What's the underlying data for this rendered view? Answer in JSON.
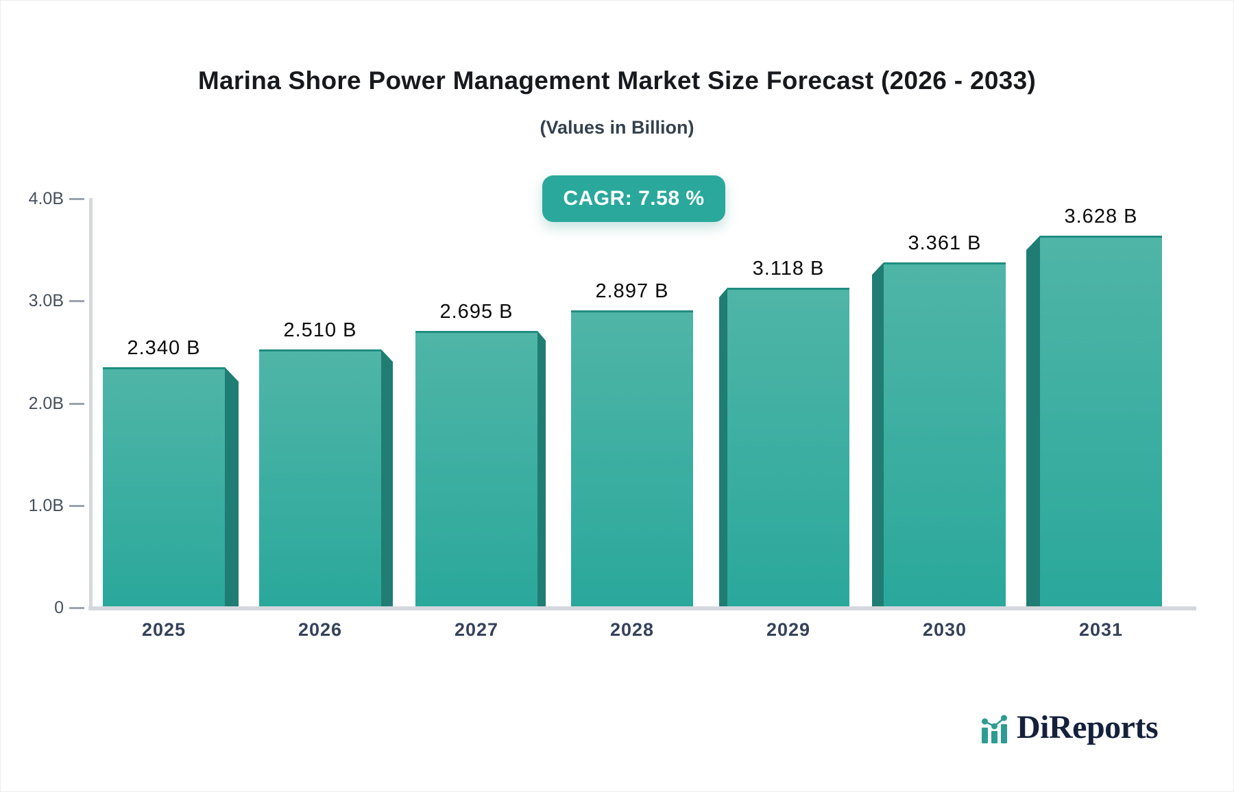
{
  "chart_data": {
    "type": "bar",
    "title": "Marina Shore Power Management Market Size Forecast (2026 - 2033)",
    "subtitle": "(Values in Billion)",
    "cagr_text": "CAGR: 7.58 %",
    "categories": [
      "2025",
      "2026",
      "2027",
      "2028",
      "2029",
      "2030",
      "2031"
    ],
    "values": [
      2.34,
      2.51,
      2.695,
      2.897,
      3.118,
      3.361,
      3.628
    ],
    "value_labels": [
      "2.340 B",
      "2.510 B",
      "2.695 B",
      "2.897 B",
      "3.118 B",
      "3.361 B",
      "3.628 B"
    ],
    "ylim": [
      0,
      4
    ],
    "ytick_values": [
      0,
      1,
      2,
      3,
      4
    ],
    "ytick_labels": [
      "0",
      "1.0B",
      "2.0B",
      "3.0B",
      "4.0B"
    ],
    "grid": false,
    "legend": false,
    "bar_style": "3d-perspective-teal"
  },
  "branding": {
    "logo_text": "DiReports",
    "logo_icon": "mini-bar-line-chart-icon"
  },
  "colors": {
    "accent": "#2aa89c",
    "bar_face_top": "#4fb5a7",
    "bar_face_bottom": "#2aa89b",
    "bar_top_edge": "#1f8d80",
    "bar_side": "#207d73",
    "axis_line": "#d5d9de",
    "tick_dash": "#9aa2ae",
    "tick_label": "#46505e",
    "year_label": "#36425a",
    "value_label": "#0b0b0d",
    "logo_teal": "#2d9c91",
    "logo_navy": "#15213b"
  }
}
